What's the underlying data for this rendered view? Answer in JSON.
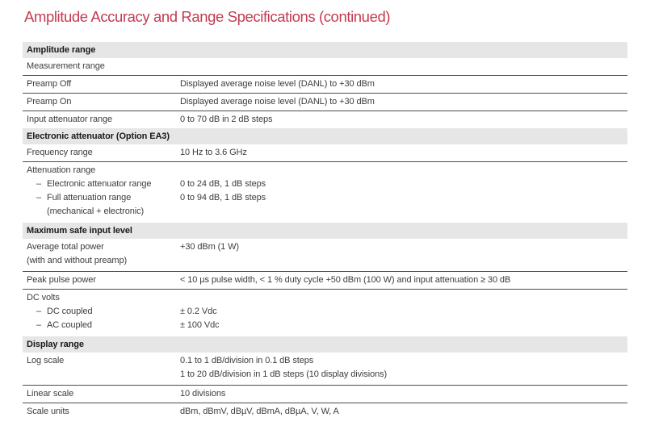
{
  "page_title": "Amplitude Accuracy and Range Specifications (continued)",
  "colors": {
    "accent": "#c43a52",
    "header_bg": "#e6e6e6",
    "header_text": "#191919",
    "text": "#3d3d3d",
    "row_border": "#4c4c4c"
  },
  "table": {
    "sections": [
      {
        "header": "Amplitude range",
        "rows": [
          {
            "label": "Measurement range",
            "value": ""
          },
          {
            "label": "Preamp Off",
            "value": "Displayed average noise level (DANL) to +30 dBm"
          },
          {
            "label": "Preamp On",
            "value": "Displayed average noise level (DANL) to +30 dBm"
          },
          {
            "label": "Input attenuator range",
            "value": "0 to 70 dB in 2 dB steps"
          }
        ]
      },
      {
        "header": "Electronic attenuator (Option EA3)",
        "rows": [
          {
            "label": "Frequency range",
            "value": "10 Hz to 3.6 GHz"
          },
          {
            "label": "Attenuation range",
            "subs": [
              {
                "dash": "–",
                "label": "Electronic attenuator range",
                "value": "0 to 24 dB, 1 dB steps"
              },
              {
                "dash": "–",
                "label": "Full attenuation range",
                "label2": "(mechanical + electronic)",
                "value": "0 to 94 dB, 1 dB steps"
              }
            ]
          }
        ]
      },
      {
        "header": "Maximum safe input level",
        "rows": [
          {
            "label": "Average total power",
            "label2": "(with and without preamp)",
            "value": "+30 dBm (1 W)"
          },
          {
            "label": "Peak pulse power",
            "value": "< 10 µs pulse width, < 1 % duty cycle +50 dBm (100 W) and input attenuation ≥ 30 dB"
          },
          {
            "label": "DC volts",
            "subs": [
              {
                "dash": "–",
                "label": "DC coupled",
                "value": "± 0.2 Vdc"
              },
              {
                "dash": "–",
                "label": "AC coupled",
                "value": "± 100 Vdc"
              }
            ]
          }
        ]
      },
      {
        "header": "Display range",
        "rows": [
          {
            "label": "Log scale",
            "value": "0.1 to 1 dB/division in 0.1 dB steps",
            "value2": "1 to 20 dB/division in 1 dB steps (10 display divisions)"
          },
          {
            "label": "Linear scale",
            "value": "10 divisions"
          },
          {
            "label": "Scale units",
            "value": "dBm, dBmV, dBµV, dBmA, dBµA, V, W, A"
          }
        ]
      }
    ]
  }
}
